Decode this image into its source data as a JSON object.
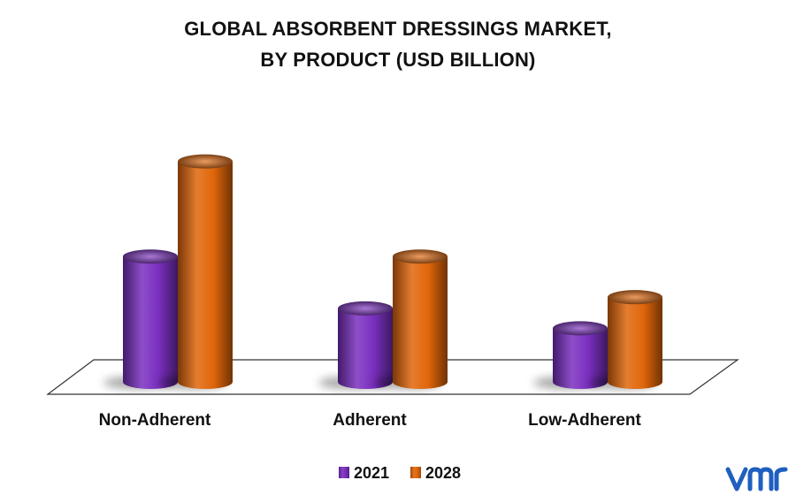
{
  "chart_data": {
    "type": "bar",
    "title_lines": [
      "GLOBAL ABSORBENT DRESSINGS MARKET,",
      "BY PRODUCT (USD BILLION)"
    ],
    "categories": [
      "Non-Adherent",
      "Adherent",
      "Low-Adherent"
    ],
    "series": [
      {
        "name": "2021",
        "values": [
          1.45,
          0.85,
          0.62
        ],
        "color": "#7a2fc0"
      },
      {
        "name": "2028",
        "values": [
          2.55,
          1.45,
          0.98
        ],
        "color": "#e0660a"
      }
    ],
    "legend_placement": "bottom",
    "grid": false,
    "ylim": [
      0,
      2.7
    ]
  },
  "brand": {
    "logo_icon": "vmr-logo-icon",
    "color": "#1f5fbf"
  }
}
